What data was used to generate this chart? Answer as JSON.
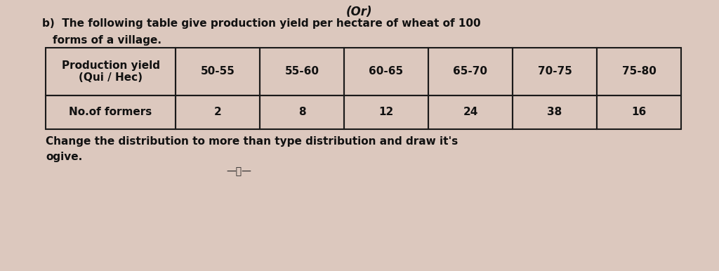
{
  "title_or": "(Or)",
  "line1": "b)  The following table give production yield per hectare of wheat of 100",
  "line2": "forms of a village.",
  "row1_header": "Production yield\n(Qui / Hec)",
  "row2_header": "No.of formers",
  "col_headers": [
    "50-55",
    "55-60",
    "60-65",
    "65-70",
    "70-75",
    "75-80"
  ],
  "values": [
    "2",
    "8",
    "12",
    "24",
    "38",
    "16"
  ],
  "line3": "Change the distribution to more than type distribution and draw it's",
  "line4": "ogive.",
  "bg_color": "#dcc8be",
  "text_color": "#111111",
  "table_line_color": "#1a1a1a"
}
